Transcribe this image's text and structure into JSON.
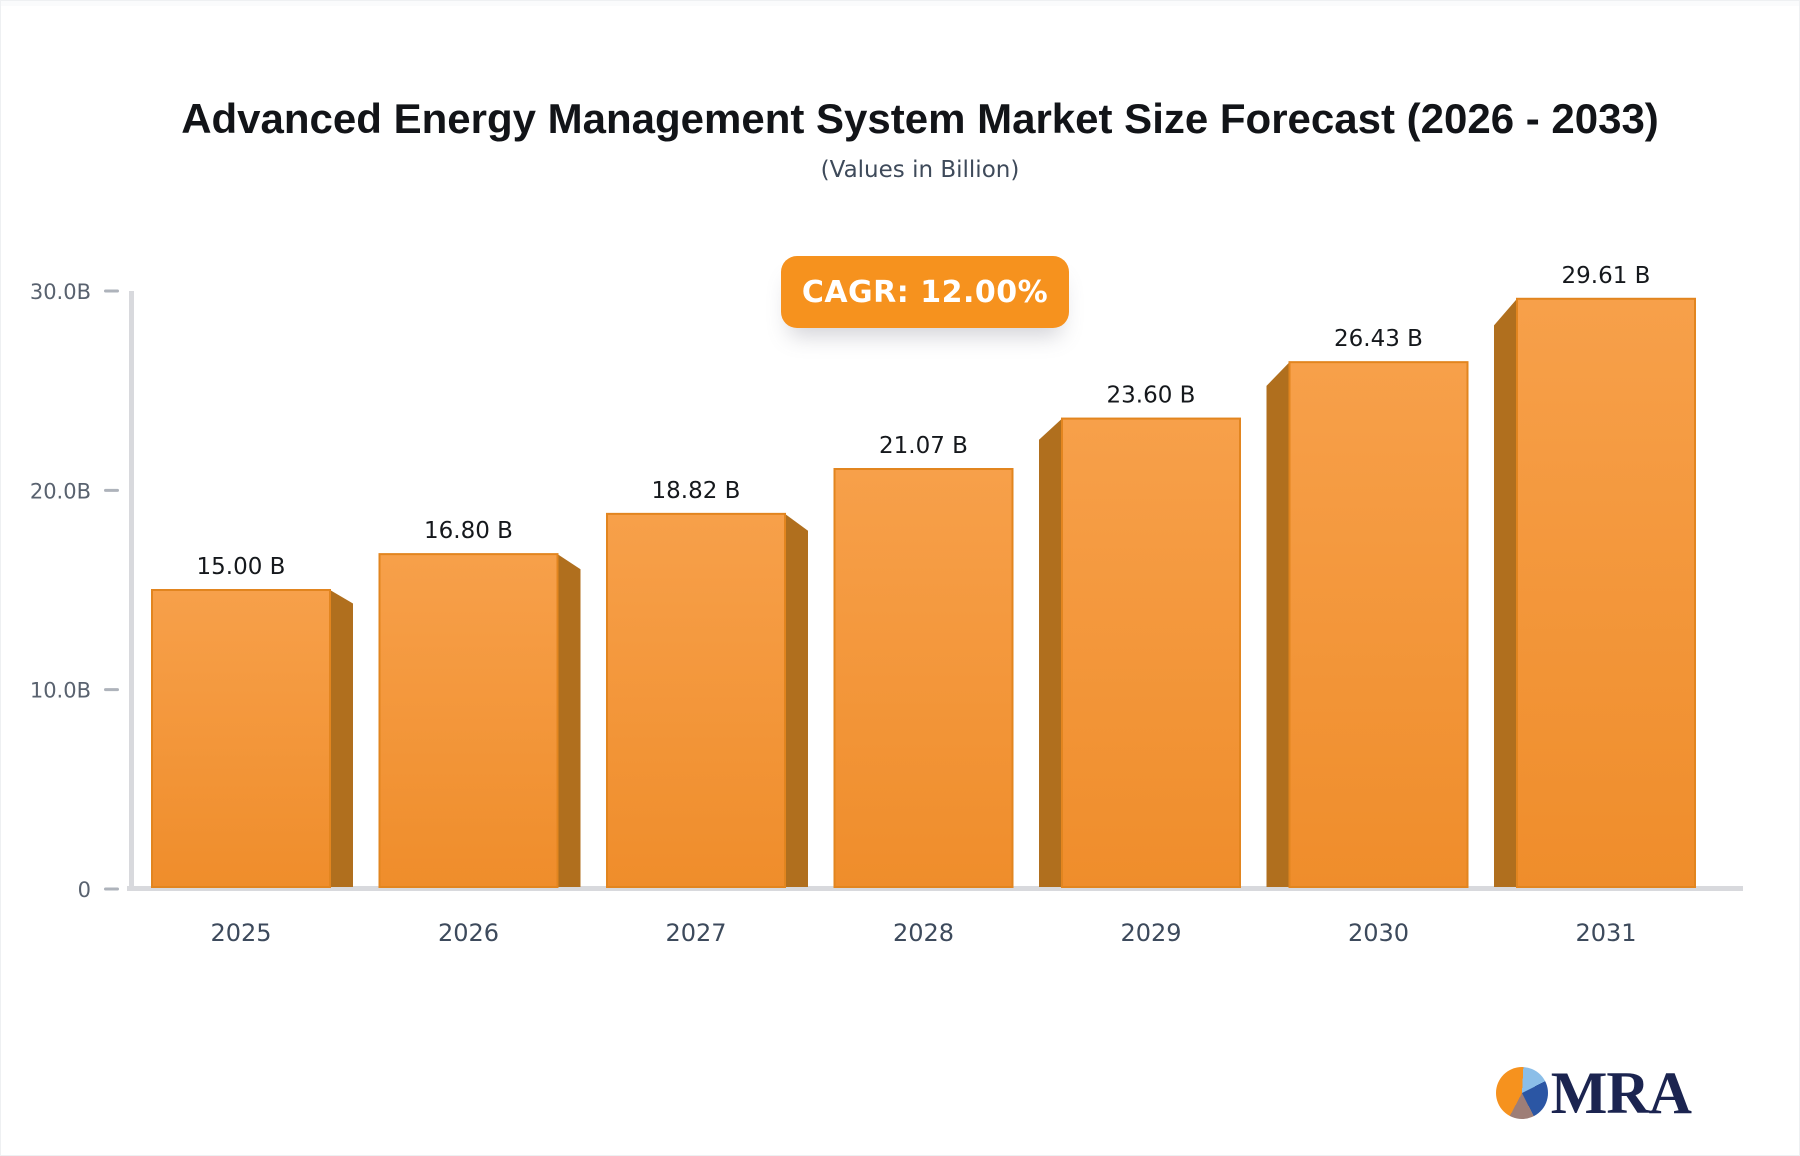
{
  "chart_data": {
    "type": "bar",
    "title": "Advanced Energy Management System Market Size Forecast (2026 - 2033)",
    "subtitle": "(Values in Billion)",
    "badge": "CAGR: 12.00%",
    "categories": [
      "2025",
      "2026",
      "2027",
      "2028",
      "2029",
      "2030",
      "2031"
    ],
    "values": [
      15.0,
      16.8,
      18.82,
      21.07,
      23.6,
      26.43,
      29.61
    ],
    "value_labels": [
      "15.00 B",
      "16.80 B",
      "18.82 B",
      "21.07 B",
      "23.60 B",
      "26.43 B",
      "29.61 B"
    ],
    "xlabel": "",
    "ylabel": "",
    "ylim": [
      0,
      32
    ],
    "yticks": [
      {
        "value": 0,
        "label": "0"
      },
      {
        "value": 10,
        "label": "10.0B"
      },
      {
        "value": 20,
        "label": "20.0B"
      },
      {
        "value": 30,
        "label": "30.0B"
      }
    ],
    "grid": false,
    "legend": false,
    "bar_style": "3d-extruded"
  },
  "branding": {
    "name": "MRA"
  },
  "colors": {
    "bar_face_top": "#F7A04A",
    "bar_face_bottom": "#EF8D2B",
    "bar_edge": "#E2851F",
    "bar_side": "#B06F1E",
    "badge_bg": "#F6921E",
    "axis_line": "#D8D9DD",
    "tick_mark": "#AEB3BB",
    "y_label": "#59626F",
    "x_label": "#3D4A5C",
    "value_label": "#15181C",
    "title": "#121418",
    "subtitle": "#3E4A5A",
    "logo_navy": "#1B2450",
    "pie_orange": "#F6921E",
    "pie_lightblue": "#8BBEE8",
    "pie_darkblue": "#2B56A4",
    "pie_mauve": "#9E7E77"
  }
}
